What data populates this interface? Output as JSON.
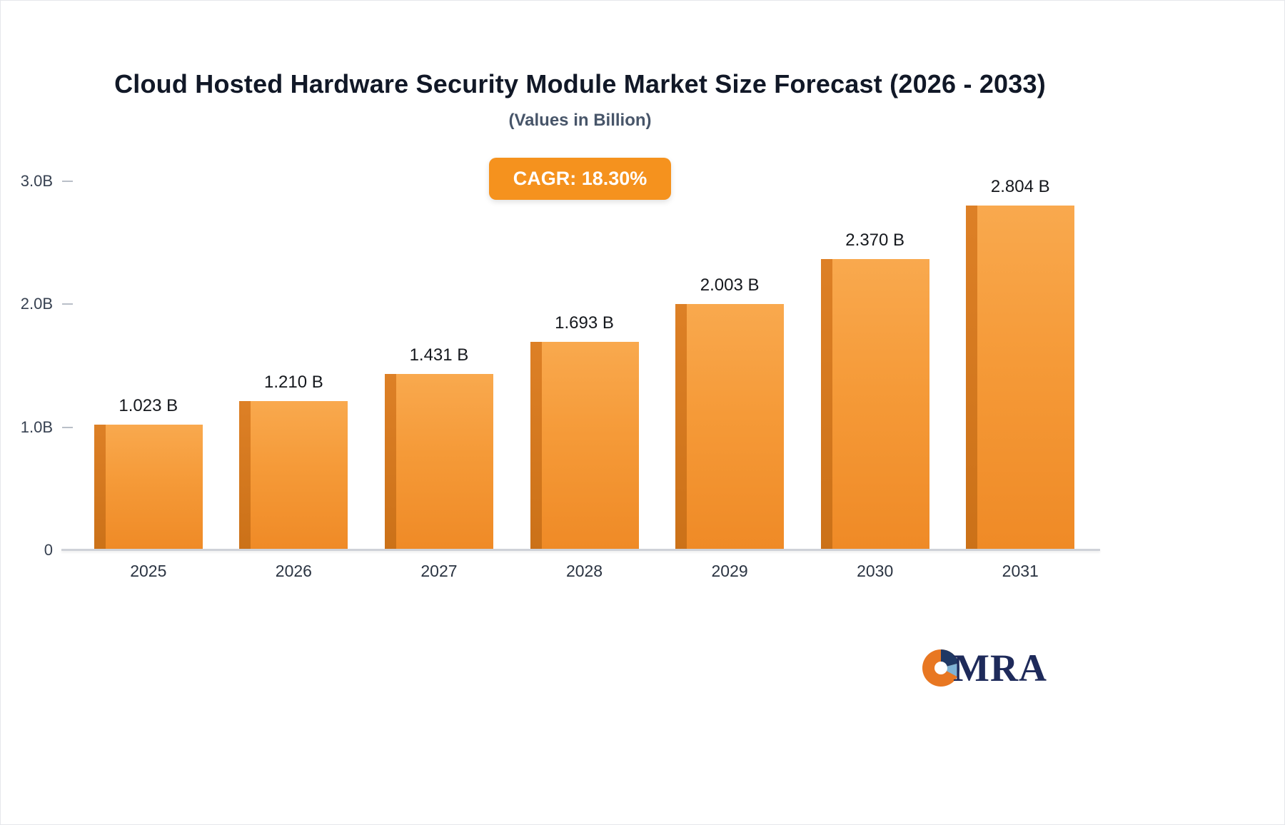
{
  "title": "Cloud Hosted Hardware Security Module Market Size Forecast (2026 - 2033)",
  "subtitle": "(Values in Billion)",
  "badge": {
    "label": "CAGR: 18.30%",
    "bg": "#F5921E",
    "text_color": "#FFFFFF"
  },
  "logo": {
    "text": "MRA"
  },
  "colors": {
    "bar_top": "#F9A94E",
    "bar_bottom": "#EF8A26",
    "bar_side": "#CB7118",
    "axis_line": "#cfd2d8",
    "title_text": "#111827",
    "subtitle_text": "#475569",
    "tick_text": "#374151"
  },
  "chart_data": {
    "type": "bar",
    "categories": [
      "2025",
      "2026",
      "2027",
      "2028",
      "2029",
      "2030",
      "2031"
    ],
    "values": [
      1.023,
      1.21,
      1.431,
      1.693,
      2.003,
      2.37,
      2.804
    ],
    "value_labels": [
      "1.023 B",
      "1.210 B",
      "1.431 B",
      "1.693 B",
      "2.003 B",
      "2.370 B",
      "2.804 B"
    ],
    "title": "Cloud Hosted Hardware Security Module Market Size Forecast (2026 - 2033)",
    "xlabel": "",
    "ylabel": "",
    "ylim": [
      0,
      3
    ],
    "yticks": [
      {
        "value": 3,
        "label": "3.0B"
      },
      {
        "value": 2,
        "label": "2.0B"
      },
      {
        "value": 1,
        "label": "1.0B"
      },
      {
        "value": 0,
        "label": "0"
      }
    ],
    "grid": false,
    "legend": false
  }
}
